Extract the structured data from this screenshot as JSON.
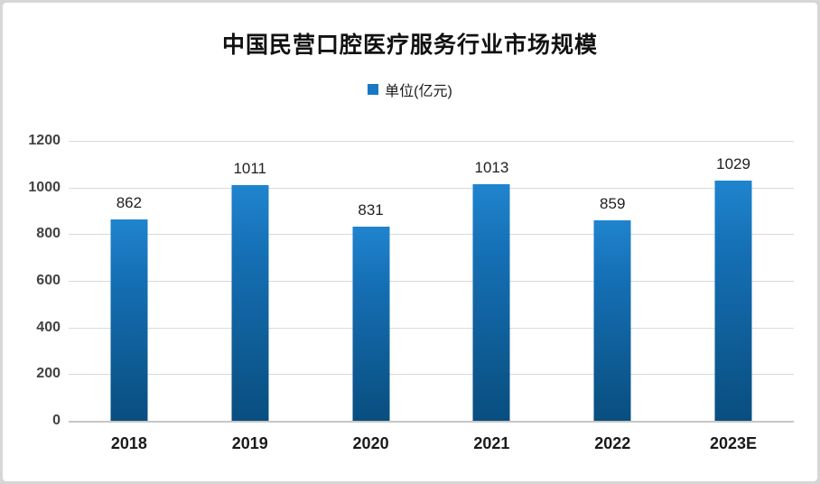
{
  "page": {
    "background": "#ffffff",
    "frame_border": "#d6d6d6"
  },
  "chart_data": {
    "type": "bar",
    "title": "中国民营口腔医疗服务行业市场规模",
    "legend": [
      {
        "label": "单位(亿元)",
        "color": "#1878c2"
      }
    ],
    "legend_position": "top",
    "categories": [
      "2018",
      "2019",
      "2020",
      "2021",
      "2022",
      "2023E"
    ],
    "values": [
      862,
      1011,
      831,
      1013,
      859,
      1029
    ],
    "xlabel": "",
    "ylabel": "",
    "ylim": [
      0,
      1200
    ],
    "yticks": [
      0,
      200,
      400,
      600,
      800,
      1000,
      1200
    ],
    "grid": true,
    "bar_color_top": "#1f84ce",
    "bar_color_bottom": "#094e7f",
    "gridline_color": "#d9d9d9"
  }
}
